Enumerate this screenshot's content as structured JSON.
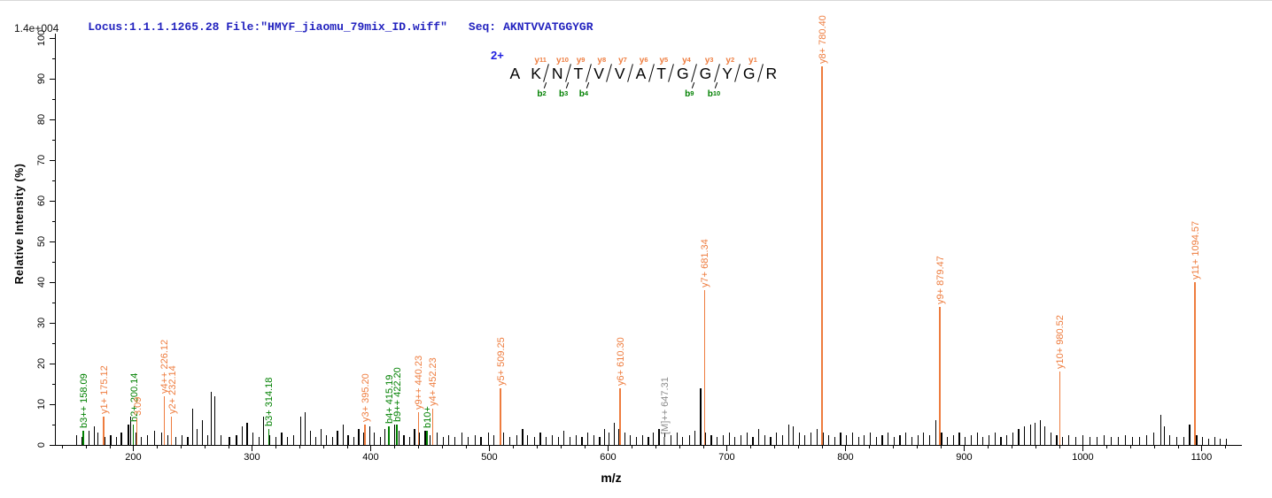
{
  "header": {
    "line1": "Locus:1.1.1.1265.28 File:\"HMYF_jiaomu_79mix_ID.wiff\"",
    "seq_label": "Seq:",
    "sequence": "AKNTVVATGGYGR",
    "max_intensity": "1.4e+004"
  },
  "peptide": {
    "charge_label": "2+",
    "residues": [
      "A",
      "K",
      "N",
      "T",
      "V",
      "V",
      "A",
      "T",
      "G",
      "G",
      "Y",
      "G",
      "R"
    ],
    "gaps": [
      {
        "after": 2,
        "y": "y11",
        "b": "b2"
      },
      {
        "after": 3,
        "y": "y10",
        "b": "b3"
      },
      {
        "after": 4,
        "y": "y9",
        "b": "b4"
      },
      {
        "after": 5,
        "y": "y8"
      },
      {
        "after": 6,
        "y": "y7"
      },
      {
        "after": 7,
        "y": "y6"
      },
      {
        "after": 8,
        "y": "y5"
      },
      {
        "after": 9,
        "y": "y4",
        "b": "b9"
      },
      {
        "after": 10,
        "y": "y3",
        "b": "b10"
      },
      {
        "after": 11,
        "y": "y2"
      },
      {
        "after": 12,
        "y": "y1"
      }
    ]
  },
  "colors": {
    "y_ion": "#ee7c3e",
    "b_ion": "#008000",
    "precursor": "#8a8a8a",
    "peak": "#000000",
    "header_blue": "#2323bf",
    "charge_blue": "#1f1fe0"
  },
  "chart_data": {
    "type": "bar",
    "title": "",
    "xlabel": "m/z",
    "ylabel": "Relative  Intensity (%)",
    "xlim": [
      134,
      1134
    ],
    "ylim": [
      0,
      100
    ],
    "x_major_ticks": [
      200,
      300,
      400,
      500,
      600,
      700,
      800,
      900,
      1000,
      1100
    ],
    "x_minor_tick_step": 20,
    "y_major_ticks": [
      0,
      10,
      20,
      30,
      40,
      50,
      60,
      70,
      80,
      90,
      100
    ],
    "y_minor_tick_step": 5,
    "grid": false,
    "legend": "none",
    "annotated_peaks": [
      {
        "ion": "b3++",
        "mz": 158.09,
        "pct": 3.5,
        "type": "b"
      },
      {
        "ion": "y1+",
        "mz": 175.12,
        "pct": 7,
        "type": "y"
      },
      {
        "ion": "b2+",
        "mz": 200.14,
        "pct": 5,
        "type": "b"
      },
      {
        "ion": "",
        "mz": 203.09,
        "pct": 6.5,
        "type": "y",
        "label_override": "3.09"
      },
      {
        "ion": "y4++",
        "mz": 226.12,
        "pct": 12,
        "type": "y"
      },
      {
        "ion": "y2+",
        "mz": 232.14,
        "pct": 7,
        "type": "y"
      },
      {
        "ion": "b3+",
        "mz": 314.18,
        "pct": 4,
        "type": "b"
      },
      {
        "ion": "y3+",
        "mz": 395.2,
        "pct": 5,
        "type": "y"
      },
      {
        "ion": "b4+",
        "mz": 415.19,
        "pct": 4.5,
        "type": "b"
      },
      {
        "ion": "b9++",
        "mz": 422.2,
        "pct": 5,
        "type": "b"
      },
      {
        "ion": "y9++",
        "mz": 440.23,
        "pct": 8,
        "type": "y"
      },
      {
        "ion": "b10+",
        "mz": 447.4,
        "pct": 3.5,
        "type": "b",
        "label_override": "b10+"
      },
      {
        "ion": "y4+",
        "mz": 452.23,
        "pct": 9,
        "type": "y"
      },
      {
        "ion": "y5+",
        "mz": 509.25,
        "pct": 14,
        "type": "y"
      },
      {
        "ion": "y6+",
        "mz": 610.3,
        "pct": 14,
        "type": "y"
      },
      {
        "ion": "[M]++",
        "mz": 647.31,
        "pct": 2,
        "type": "M"
      },
      {
        "ion": "y7+",
        "mz": 681.34,
        "pct": 38,
        "type": "y"
      },
      {
        "ion": "y8+",
        "mz": 780.4,
        "pct": 93,
        "type": "y"
      },
      {
        "ion": "y9+",
        "mz": 879.47,
        "pct": 34,
        "type": "y"
      },
      {
        "ion": "y10+",
        "mz": 980.52,
        "pct": 18,
        "type": "y"
      },
      {
        "ion": "y11+",
        "mz": 1094.57,
        "pct": 40,
        "type": "y"
      }
    ],
    "noise_peaks": [
      [
        152,
        2.5
      ],
      [
        157,
        2
      ],
      [
        163,
        3.5
      ],
      [
        167,
        4.5
      ],
      [
        170,
        3
      ],
      [
        176,
        2
      ],
      [
        181,
        2.5
      ],
      [
        186,
        2
      ],
      [
        190,
        3
      ],
      [
        196,
        5
      ],
      [
        198,
        7
      ],
      [
        202,
        3
      ],
      [
        207,
        2
      ],
      [
        212,
        2.5
      ],
      [
        218,
        3.5
      ],
      [
        224,
        3
      ],
      [
        229,
        2.5
      ],
      [
        236,
        2
      ],
      [
        241,
        2.5
      ],
      [
        246,
        2
      ],
      [
        250,
        9
      ],
      [
        254,
        4
      ],
      [
        258,
        6
      ],
      [
        263,
        2.5
      ],
      [
        266,
        13
      ],
      [
        269,
        12
      ],
      [
        274,
        2.5
      ],
      [
        281,
        2
      ],
      [
        287,
        2.5
      ],
      [
        292,
        4.5
      ],
      [
        296,
        5.5
      ],
      [
        301,
        3
      ],
      [
        306,
        2
      ],
      [
        310,
        7
      ],
      [
        315,
        2.5
      ],
      [
        320,
        2
      ],
      [
        325,
        3
      ],
      [
        330,
        2
      ],
      [
        335,
        2.5
      ],
      [
        341,
        7
      ],
      [
        345,
        8
      ],
      [
        349,
        3.5
      ],
      [
        354,
        2
      ],
      [
        358,
        4
      ],
      [
        363,
        2.5
      ],
      [
        368,
        2
      ],
      [
        372,
        3.5
      ],
      [
        377,
        5
      ],
      [
        381,
        2.5
      ],
      [
        386,
        2
      ],
      [
        390,
        4
      ],
      [
        394,
        3
      ],
      [
        399,
        4.5
      ],
      [
        403,
        3
      ],
      [
        408,
        2
      ],
      [
        412,
        4
      ],
      [
        416,
        3
      ],
      [
        420,
        5
      ],
      [
        424,
        3.5
      ],
      [
        428,
        2.5
      ],
      [
        433,
        2
      ],
      [
        437,
        4
      ],
      [
        441,
        3
      ],
      [
        446,
        3.5
      ],
      [
        450,
        2.5
      ],
      [
        456,
        3
      ],
      [
        461,
        2
      ],
      [
        466,
        2.5
      ],
      [
        471,
        2
      ],
      [
        477,
        3
      ],
      [
        482,
        2
      ],
      [
        488,
        2.5
      ],
      [
        493,
        2
      ],
      [
        499,
        3
      ],
      [
        504,
        2.5
      ],
      [
        512,
        3
      ],
      [
        517,
        2
      ],
      [
        523,
        2.5
      ],
      [
        528,
        4
      ],
      [
        532,
        2.5
      ],
      [
        538,
        2
      ],
      [
        543,
        3
      ],
      [
        548,
        2
      ],
      [
        553,
        2.5
      ],
      [
        558,
        2
      ],
      [
        563,
        3.5
      ],
      [
        568,
        2
      ],
      [
        573,
        2.5
      ],
      [
        578,
        2
      ],
      [
        583,
        3
      ],
      [
        588,
        2.5
      ],
      [
        593,
        2
      ],
      [
        597,
        4
      ],
      [
        601,
        3
      ],
      [
        605,
        5.5
      ],
      [
        609,
        4
      ],
      [
        614,
        3
      ],
      [
        619,
        2.5
      ],
      [
        624,
        2
      ],
      [
        629,
        2.5
      ],
      [
        634,
        2
      ],
      [
        638,
        3
      ],
      [
        643,
        4
      ],
      [
        648,
        3
      ],
      [
        653,
        2.5
      ],
      [
        658,
        3
      ],
      [
        663,
        2
      ],
      [
        669,
        2.5
      ],
      [
        673,
        3.5
      ],
      [
        678,
        14
      ],
      [
        682,
        3
      ],
      [
        687,
        2.5
      ],
      [
        692,
        2
      ],
      [
        697,
        2.5
      ],
      [
        702,
        3
      ],
      [
        707,
        2
      ],
      [
        712,
        2.5
      ],
      [
        717,
        3
      ],
      [
        722,
        2
      ],
      [
        727,
        4
      ],
      [
        732,
        2.5
      ],
      [
        737,
        2
      ],
      [
        742,
        3
      ],
      [
        747,
        2.5
      ],
      [
        752,
        5
      ],
      [
        756,
        4.5
      ],
      [
        761,
        3
      ],
      [
        766,
        2.5
      ],
      [
        771,
        3
      ],
      [
        776,
        4
      ],
      [
        781,
        3
      ],
      [
        786,
        2.5
      ],
      [
        791,
        2
      ],
      [
        796,
        3
      ],
      [
        801,
        2.5
      ],
      [
        806,
        3
      ],
      [
        811,
        2
      ],
      [
        816,
        2.5
      ],
      [
        821,
        3
      ],
      [
        826,
        2
      ],
      [
        831,
        2.5
      ],
      [
        836,
        3
      ],
      [
        841,
        2
      ],
      [
        846,
        2.5
      ],
      [
        851,
        3
      ],
      [
        856,
        2
      ],
      [
        861,
        2.5
      ],
      [
        866,
        3
      ],
      [
        871,
        2.5
      ],
      [
        876,
        6
      ],
      [
        881,
        3
      ],
      [
        886,
        2
      ],
      [
        891,
        2.5
      ],
      [
        896,
        3
      ],
      [
        901,
        2
      ],
      [
        906,
        2.5
      ],
      [
        911,
        3
      ],
      [
        916,
        2
      ],
      [
        921,
        2.5
      ],
      [
        926,
        3
      ],
      [
        931,
        2
      ],
      [
        936,
        2.5
      ],
      [
        941,
        3
      ],
      [
        946,
        4
      ],
      [
        951,
        4.5
      ],
      [
        956,
        5
      ],
      [
        960,
        5.5
      ],
      [
        964,
        6
      ],
      [
        968,
        4.5
      ],
      [
        973,
        3
      ],
      [
        978,
        2.5
      ],
      [
        983,
        2
      ],
      [
        988,
        2.5
      ],
      [
        994,
        2
      ],
      [
        1000,
        2.5
      ],
      [
        1006,
        2
      ],
      [
        1012,
        2
      ],
      [
        1018,
        2.5
      ],
      [
        1024,
        2
      ],
      [
        1030,
        2
      ],
      [
        1036,
        2.5
      ],
      [
        1042,
        2
      ],
      [
        1048,
        2
      ],
      [
        1054,
        2.5
      ],
      [
        1060,
        3
      ],
      [
        1066,
        7.5
      ],
      [
        1069,
        4.5
      ],
      [
        1073,
        2.5
      ],
      [
        1079,
        2
      ],
      [
        1085,
        2
      ],
      [
        1090,
        5
      ],
      [
        1096,
        2.5
      ],
      [
        1101,
        2
      ],
      [
        1106,
        1.5
      ],
      [
        1111,
        2
      ],
      [
        1116,
        1.5
      ],
      [
        1121,
        1.5
      ]
    ]
  }
}
